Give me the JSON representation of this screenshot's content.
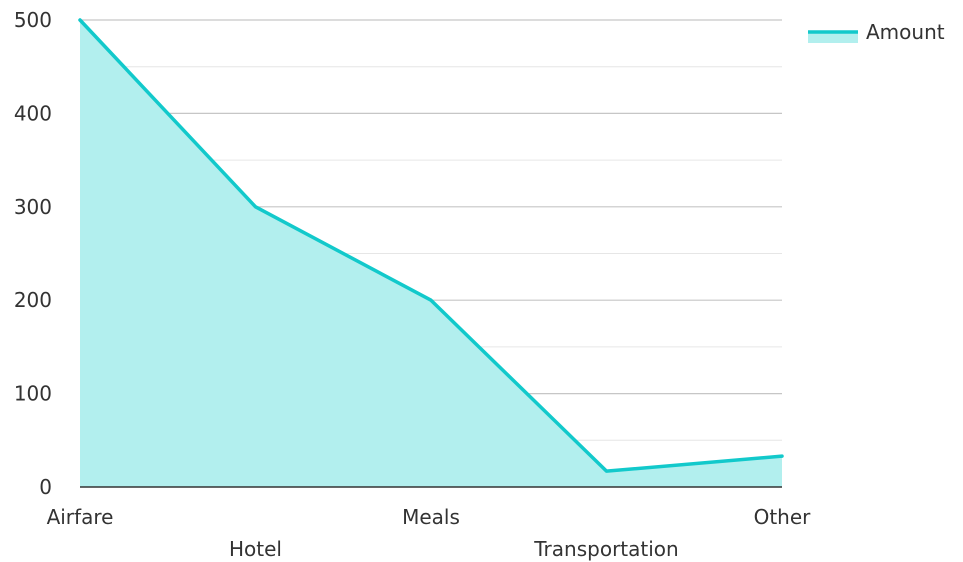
{
  "chart_data": {
    "type": "area",
    "categories": [
      "Airfare",
      "Hotel",
      "Meals",
      "Transportation",
      "Other"
    ],
    "series": [
      {
        "name": "Amount",
        "values": [
          500,
          300,
          200,
          17,
          33
        ],
        "line_color": "#12c9cb",
        "fill_color": "#b2efee"
      }
    ],
    "title": "",
    "xlabel": "",
    "ylabel": "",
    "ylim": [
      0,
      500
    ],
    "y_ticks": [
      0,
      100,
      200,
      300,
      400,
      500
    ],
    "grid": true,
    "legend_position": "top-right"
  },
  "colors": {
    "major_grid": "#c6c6c6",
    "minor_grid": "#e6e6e6",
    "axis": "#333333",
    "text": "#333333"
  }
}
